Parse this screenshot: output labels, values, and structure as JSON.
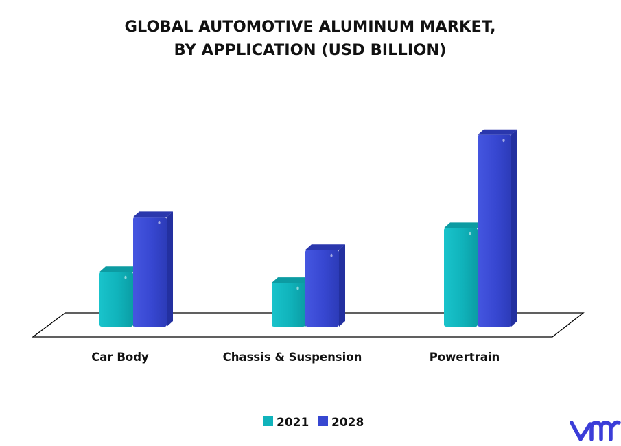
{
  "chart_data": {
    "type": "bar",
    "title": "GLOBAL AUTOMOTIVE ALUMINUM MARKET,",
    "subtitle": "BY APPLICATION (USD BILLION)",
    "categories": [
      "Car Body",
      "Chassis & Suspension",
      "Powertrain"
    ],
    "series": [
      {
        "name": "2021",
        "values": [
          20,
          16,
          36
        ],
        "color": "#10b3bb"
      },
      {
        "name": "2028",
        "values": [
          40,
          28,
          70
        ],
        "color": "#3747d1"
      }
    ],
    "ylim": [
      0,
      80
    ],
    "grid": false,
    "legend_position": "bottom-center",
    "style": "3d"
  },
  "logo": {
    "text": "vmr",
    "color": "#3b3dd8"
  }
}
